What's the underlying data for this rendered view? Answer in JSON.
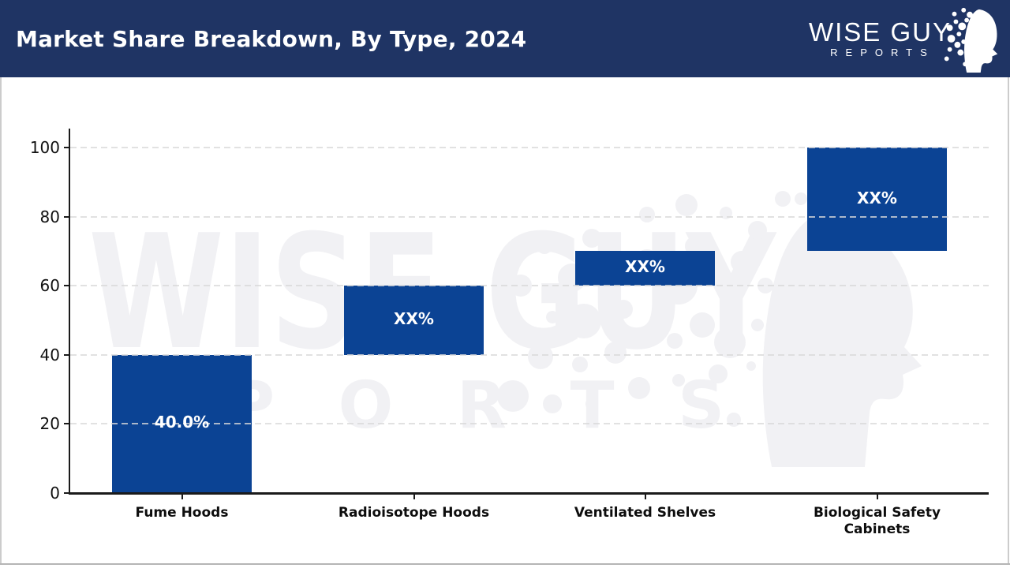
{
  "header": {
    "title": "Market Share Breakdown, By Type, 2024",
    "logo": {
      "line1": "WISE GUY",
      "line2": "REPORTS"
    }
  },
  "watermark": {
    "line1": "WISE GUY",
    "line2": "P O R T S"
  },
  "chart_data": {
    "type": "bar",
    "subtype": "waterfall",
    "title": "Market Share Breakdown, By Type, 2024",
    "categories": [
      "Fume Hoods",
      "Radioisotope Hoods",
      "Ventilated Shelves",
      "Biological Safety Cabinets"
    ],
    "segments": [
      {
        "category": "Fume Hoods",
        "start": 0,
        "end": 40,
        "label": "40.0%"
      },
      {
        "category": "Radioisotope Hoods",
        "start": 40,
        "end": 60,
        "label": "XX%"
      },
      {
        "category": "Ventilated Shelves",
        "start": 60,
        "end": 70,
        "label": "XX%"
      },
      {
        "category": "Biological Safety Cabinets",
        "start": 70,
        "end": 100,
        "label": "XX%"
      }
    ],
    "yticks": [
      0,
      20,
      40,
      60,
      80,
      100
    ],
    "ylim": [
      0,
      105
    ],
    "xlabel": "",
    "ylabel": "",
    "legend": null,
    "grid": "horizontal-dashed",
    "bar_color": "#0b4394",
    "bar_label_color": "#ffffff"
  },
  "colors": {
    "header_bg": "#1f3464",
    "bar": "#0b4394",
    "axis": "#1a1a1a",
    "gridline": "#d9d9d9",
    "watermark": "#f1f1f4",
    "frame_border": "#c5c5c5"
  }
}
